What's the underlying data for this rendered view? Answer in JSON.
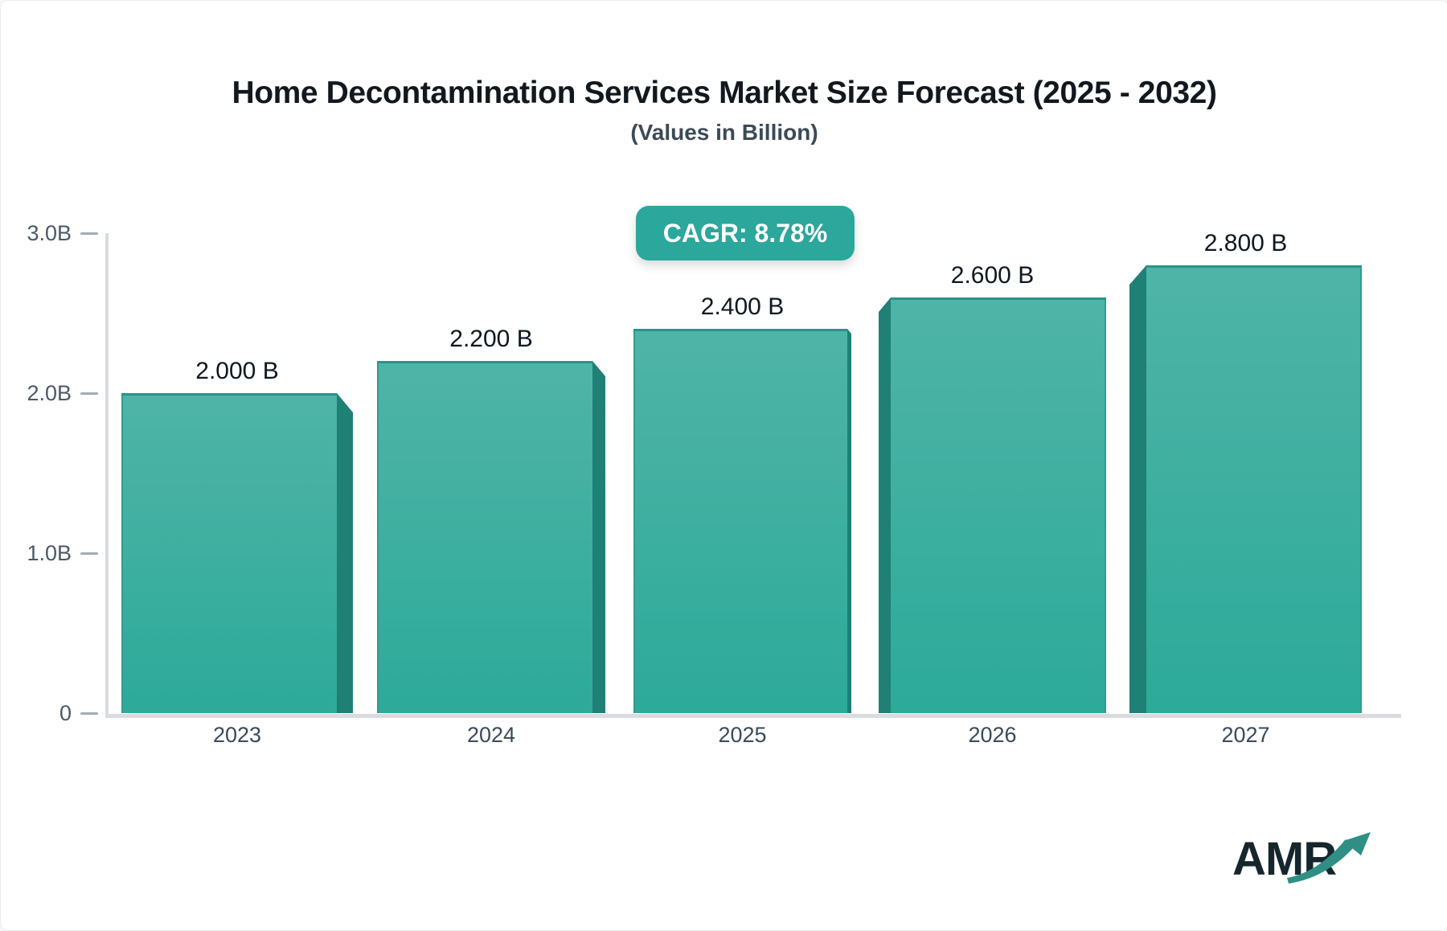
{
  "header": {
    "title": "Home Decontamination Services Market Size Forecast (2025 - 2032)",
    "subtitle": "(Values in Billion)"
  },
  "cagr_badge": {
    "label": "CAGR: 8.78%"
  },
  "logo": {
    "text": "AMR",
    "arrow_icon": "trending-up-arrow"
  },
  "colors": {
    "bar_gradient_top": "#4fb4a7",
    "bar_gradient_bottom": "#2caa9a",
    "bar_side_shadow": "#1f8076",
    "badge_background": "#2ba79b",
    "axis_line": "#d9dbdf",
    "tick_text": "#4a5968",
    "category_text": "#394a5b",
    "value_text": "#0f1720",
    "logo_text": "#15262c",
    "logo_arrow": "#2f8f85"
  },
  "chart_data": {
    "type": "bar",
    "title": "Home Decontamination Services Market Size Forecast (2025 - 2032)",
    "subtitle": "(Values in Billion)",
    "annotation": "CAGR: 8.78%",
    "categories": [
      "2023",
      "2024",
      "2025",
      "2026",
      "2027"
    ],
    "values": [
      2.0,
      2.2,
      2.4,
      2.6,
      2.8
    ],
    "bar_labels": [
      "2.000 B",
      "2.200 B",
      "2.400 B",
      "2.600 B",
      "2.800 B"
    ],
    "ylim": [
      0,
      3
    ],
    "yticks": [
      {
        "value": 3,
        "label": "3.0B"
      },
      {
        "value": 2,
        "label": "2.0B"
      },
      {
        "value": 1,
        "label": "1.0B"
      },
      {
        "value": 0,
        "label": "0"
      }
    ],
    "grid": "off",
    "legend": "none",
    "bar_style": "3d-extruded"
  }
}
